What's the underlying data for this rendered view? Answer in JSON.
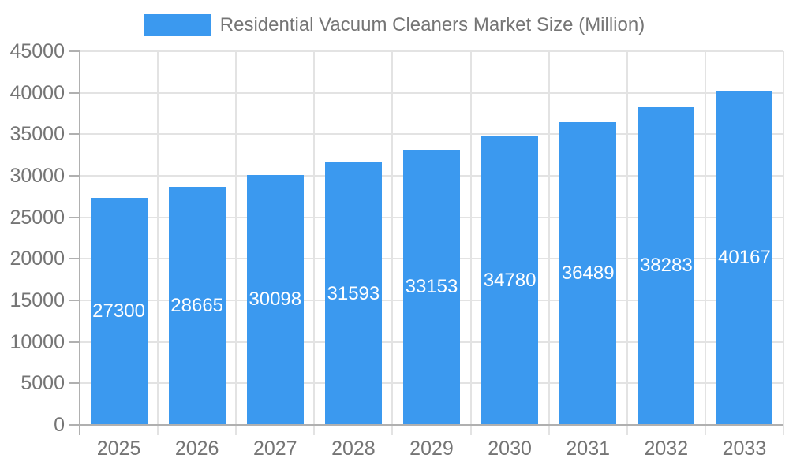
{
  "chart_data": {
    "type": "bar",
    "title": "Residential Vacuum Cleaners Market Size (Million)",
    "categories": [
      "2025",
      "2026",
      "2027",
      "2028",
      "2029",
      "2030",
      "2031",
      "2032",
      "2033"
    ],
    "values": [
      27300,
      28665,
      30098,
      31593,
      33153,
      34780,
      36489,
      38283,
      40167
    ],
    "xlabel": "",
    "ylabel": "",
    "ylim": [
      0,
      45000
    ],
    "ytick_step": 5000,
    "grid": true,
    "legend_position": "top",
    "bar_label_position": "middle",
    "colors": {
      "bar": "#3b99ef",
      "bar_label": "#ffffff",
      "grid": "#e3e3e3",
      "axis": "#b0b0b0",
      "text": "#757575",
      "background": "#ffffff"
    }
  }
}
